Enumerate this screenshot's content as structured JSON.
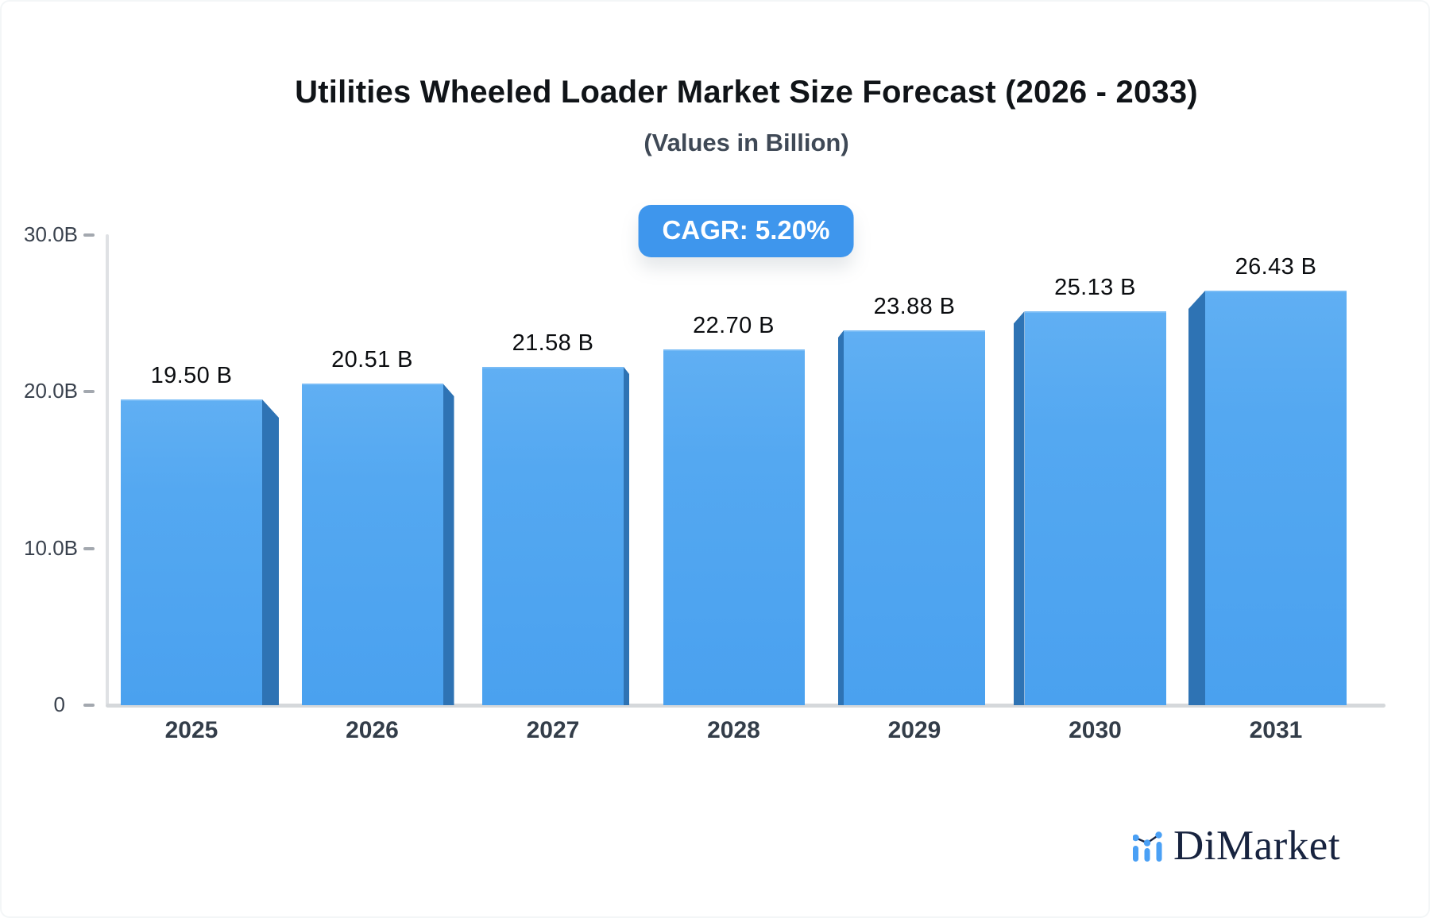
{
  "title": "Utilities Wheeled Loader Market Size Forecast (2026 - 2033)",
  "subtitle": "(Values in Billion)",
  "badge": {
    "label": "CAGR: 5.20%",
    "color": "#3e96ed"
  },
  "chart_data": {
    "type": "bar",
    "title": "Utilities Wheeled Loader Market Size Forecast (2026 - 2033)",
    "subtitle": "(Values in Billion)",
    "categories": [
      "2025",
      "2026",
      "2027",
      "2028",
      "2029",
      "2030",
      "2031"
    ],
    "values": [
      19.5,
      20.51,
      21.58,
      22.7,
      23.88,
      25.13,
      26.43
    ],
    "value_labels": [
      "19.50 B",
      "20.51 B",
      "21.58 B",
      "22.70 B",
      "23.88 B",
      "25.13 B",
      "26.43 B"
    ],
    "xlabel": "",
    "ylabel": "",
    "ylim": [
      0,
      30
    ],
    "yticks": [
      {
        "label": "30.0B",
        "value": 30
      },
      {
        "label": "20.0B",
        "value": 20
      },
      {
        "label": "10.0B",
        "value": 10
      },
      {
        "label": "0",
        "value": 0
      }
    ],
    "grid": false,
    "legend": false,
    "bar_color": "#4fa5f0",
    "bar_side_color": "#2e73b4",
    "style": "3d-perspective-columns"
  },
  "logo": {
    "text": "DiMarket",
    "icon": "bar-chart-logo-icon",
    "accent": "#4aa0f5",
    "text_color": "#17233f"
  }
}
